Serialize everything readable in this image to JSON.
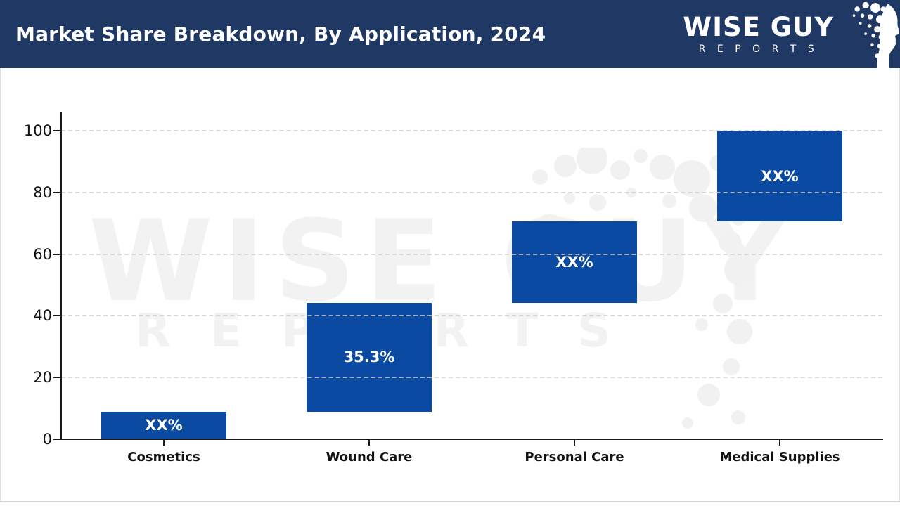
{
  "header": {
    "title": "Market Share Breakdown, By Application, 2024",
    "logo_line1": "WISE GUY",
    "logo_line2": "R E P O R T S",
    "background": "#203864"
  },
  "watermark": {
    "line1": "WISE GUY",
    "line2": "REPORTS"
  },
  "chart_data": {
    "type": "waterfall",
    "title": "Market Share Breakdown, By Application, 2024",
    "categories": [
      "Cosmetics",
      "Wound Care",
      "Personal Care",
      "Medical Supplies"
    ],
    "segments": [
      {
        "category": "Cosmetics",
        "start": 0,
        "end": 8.9,
        "label": "XX%"
      },
      {
        "category": "Wound Care",
        "start": 8.9,
        "end": 44.2,
        "label": "35.3%"
      },
      {
        "category": "Personal Care",
        "start": 44.2,
        "end": 70.6,
        "label": "XX%"
      },
      {
        "category": "Medical Supplies",
        "start": 70.6,
        "end": 100,
        "label": "XX%"
      }
    ],
    "ylim": [
      0,
      100
    ],
    "yticks": [
      0,
      20,
      40,
      60,
      80,
      100
    ],
    "xlabel": "",
    "ylabel": "",
    "grid": "horizontal-dashed",
    "legend": "none",
    "bar_color": "#0b4aa2",
    "bar_label_color": "#ffffff",
    "axis_color": "#1a1a1a",
    "grid_color": "#cecece"
  }
}
